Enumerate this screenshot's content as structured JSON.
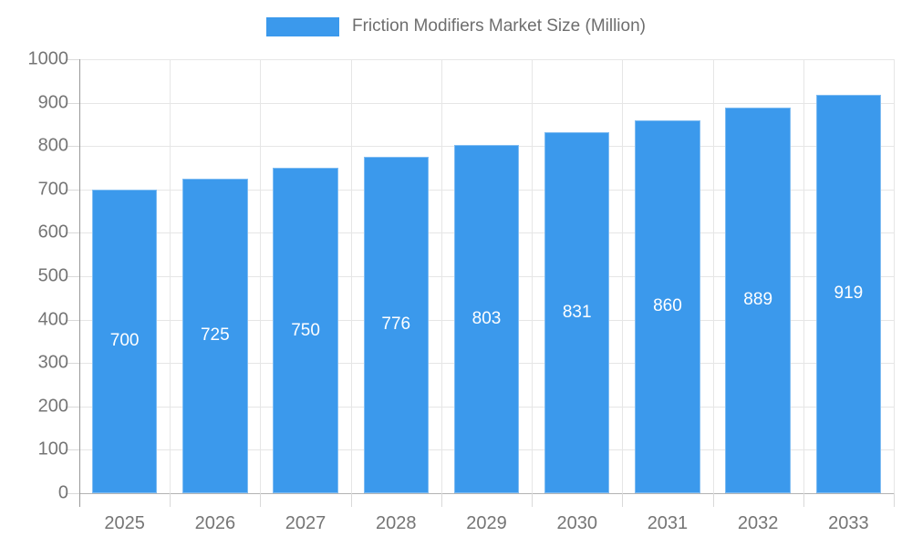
{
  "chart_data": {
    "type": "bar",
    "title": "Friction Modifiers Market Size (Million)",
    "categories": [
      "2025",
      "2026",
      "2027",
      "2028",
      "2029",
      "2030",
      "2031",
      "2032",
      "2033"
    ],
    "values": [
      700,
      725,
      750,
      776,
      803,
      831,
      860,
      889,
      919
    ],
    "xlabel": "",
    "ylabel": "",
    "ylim": [
      0,
      1000
    ],
    "ytick_step": 100,
    "ytick_labels": [
      "0",
      "100",
      "200",
      "300",
      "400",
      "500",
      "600",
      "700",
      "800",
      "900",
      "1000"
    ],
    "grid": true,
    "legend_position": "top-center",
    "colors": {
      "bar": "#3b99ec",
      "bar_label": "#ffffff",
      "axis_text": "#757575",
      "legend_text": "#6e6e6e",
      "grid_line": "#e6e6e6",
      "axis_line": "#999999",
      "zero_line": "#b3b3b3",
      "tick_line": "#d9d9d9"
    }
  }
}
